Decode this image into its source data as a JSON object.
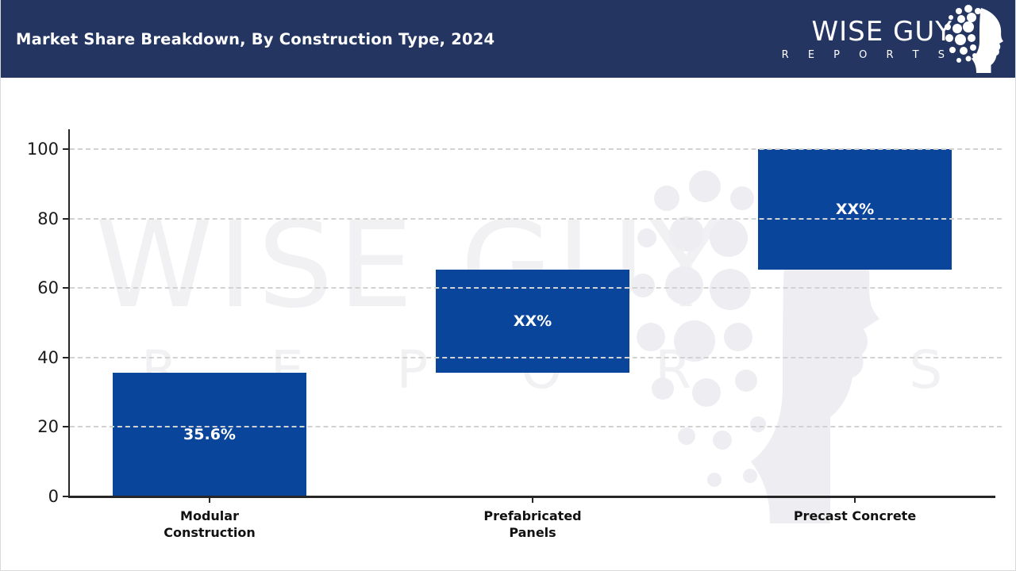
{
  "header": {
    "title": "Market Share Breakdown, By Construction Type, 2024",
    "logo": {
      "name_line": "WISE GUY",
      "reports_line": "R E P O R T S"
    }
  },
  "watermark": {
    "name_line": "WISE GUY",
    "reports_line": "R E P O R T S"
  },
  "chart_data": {
    "type": "bar",
    "variant": "waterfall",
    "title": "Market Share Breakdown, By Construction Type, 2024",
    "categories": [
      "Modular Construction",
      "Prefabricated Panels",
      "Precast Concrete"
    ],
    "category_lines": [
      [
        "Modular",
        "Construction"
      ],
      [
        "Prefabricated",
        "Panels"
      ],
      [
        "Precast Concrete"
      ]
    ],
    "segments": [
      {
        "category": "Modular Construction",
        "start": 0,
        "end": 35.6,
        "label": "35.6%"
      },
      {
        "category": "Prefabricated Panels",
        "start": 35.6,
        "end": 65.4,
        "label": "XX%"
      },
      {
        "category": "Precast Concrete",
        "start": 65.4,
        "end": 100,
        "label": "XX%"
      }
    ],
    "xlabel": "",
    "ylabel": "",
    "ylim": [
      0,
      100
    ],
    "yticks": [
      0,
      20,
      40,
      60,
      80,
      100
    ],
    "grid": {
      "horizontal": true,
      "style": "dashed",
      "above_bars": true
    },
    "colors": {
      "bar": "#0a459c",
      "grid": "#d2d2d2",
      "axis": "#262626",
      "bar_label": "#ffffff",
      "header_bg": "#233560",
      "watermark": "#f1f1f4"
    }
  }
}
